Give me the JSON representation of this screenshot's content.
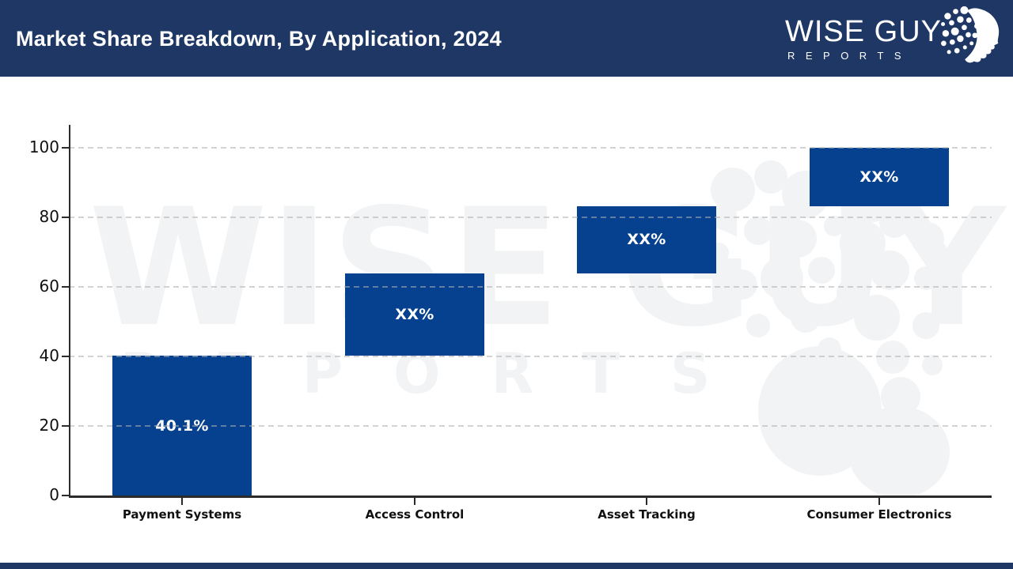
{
  "header": {
    "title": "Market Share Breakdown, By Application, 2024"
  },
  "logo": {
    "line1": "WISE GUY",
    "line2": "REPORTS"
  },
  "watermark": {
    "line1": "WISE GUY",
    "line2": "REPORTS"
  },
  "colors": {
    "header_bg": "#1e3765",
    "footer_bg": "#1e3765",
    "bar": "#05418f",
    "bar_label": "#ffffff",
    "axis": "#2b2b2b",
    "gridline": "#bdbdbd",
    "watermark": "#f2f3f5"
  },
  "chart_data": {
    "type": "bar",
    "subtype": "waterfall",
    "title": "Market Share Breakdown, By Application, 2024",
    "categories": [
      "Payment Systems",
      "Access Control",
      "Asset Tracking",
      "Consumer Electronics"
    ],
    "segments": [
      {
        "category": "Payment Systems",
        "start": 0,
        "end": 40.1,
        "value": 40.1,
        "label": "40.1%"
      },
      {
        "category": "Access Control",
        "start": 40.1,
        "end": 63.9,
        "value": 23.8,
        "label": "XX%"
      },
      {
        "category": "Asset Tracking",
        "start": 63.9,
        "end": 83.1,
        "value": 19.2,
        "label": "XX%"
      },
      {
        "category": "Consumer Electronics",
        "start": 83.1,
        "end": 100,
        "value": 16.9,
        "label": "XX%"
      }
    ],
    "xlabel": "",
    "ylabel": "",
    "ylim": [
      0,
      100
    ],
    "yticks": [
      0,
      20,
      40,
      60,
      80,
      100
    ],
    "grid": "horizontal-dashed",
    "legend": "none"
  }
}
